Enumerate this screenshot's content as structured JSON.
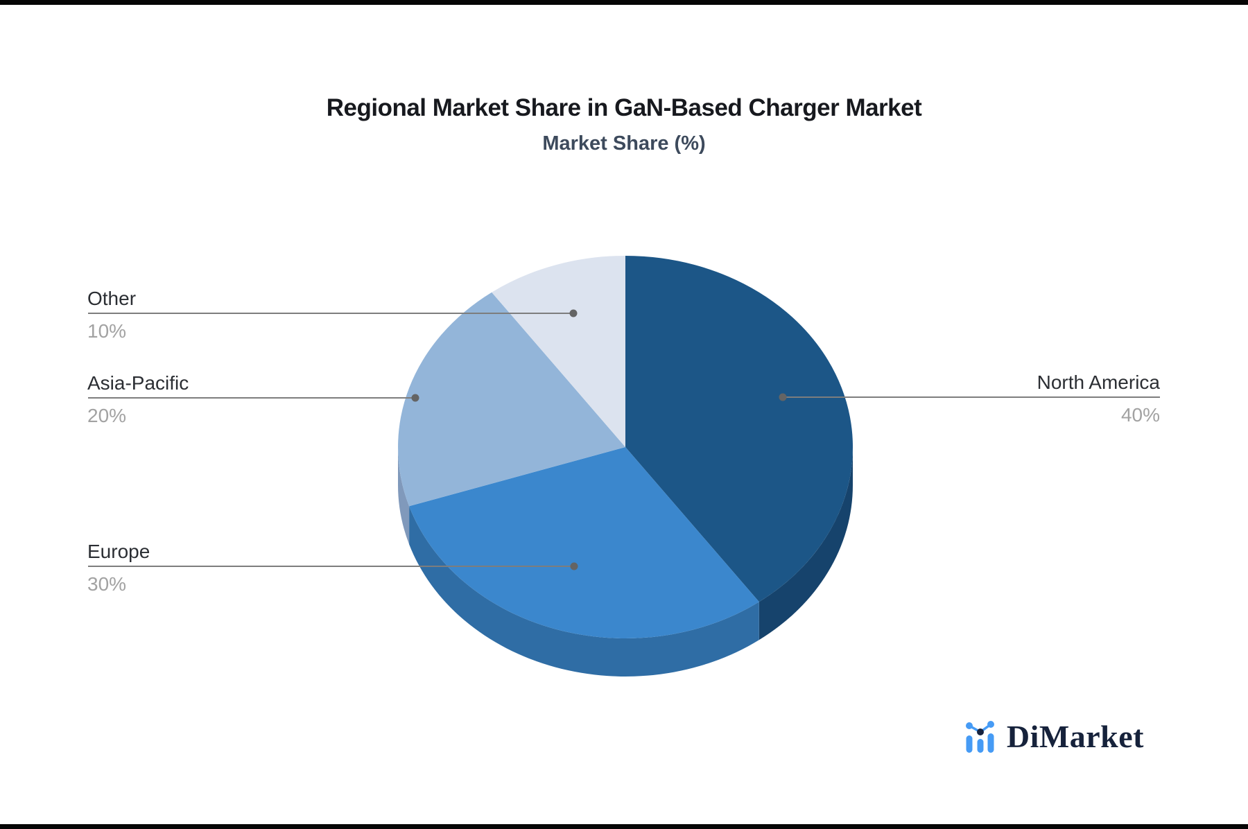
{
  "chart_data": {
    "type": "pie",
    "style": "3d",
    "title": "Regional Market Share in GaN-Based Charger Market",
    "subtitle": "Market Share (%)",
    "unit": "%",
    "labels": [
      "North America",
      "Europe",
      "Asia-Pacific",
      "Other"
    ],
    "values": [
      40,
      30,
      20,
      10
    ],
    "display_values": [
      "40%",
      "30%",
      "20%",
      "10%"
    ],
    "colors": [
      "#1c5687",
      "#3b87cd",
      "#93b5d9",
      "#dce3ef"
    ],
    "side_colors": [
      "#16436c",
      "#2f6da5",
      "#8099bb",
      "#b9c4d6"
    ],
    "start_angle_deg": 0,
    "direction": "clockwise",
    "legend": "none",
    "leader_line_color": "#7d7d7d",
    "leader_dot_color": "#646464",
    "label_color": "#2b2e33",
    "value_color": "#a2a2a2"
  },
  "logo": {
    "text": "DiMarket",
    "icon_bar_color": "#469bf5",
    "icon_dot_color": "#17233f",
    "text_color": "#16223b"
  }
}
